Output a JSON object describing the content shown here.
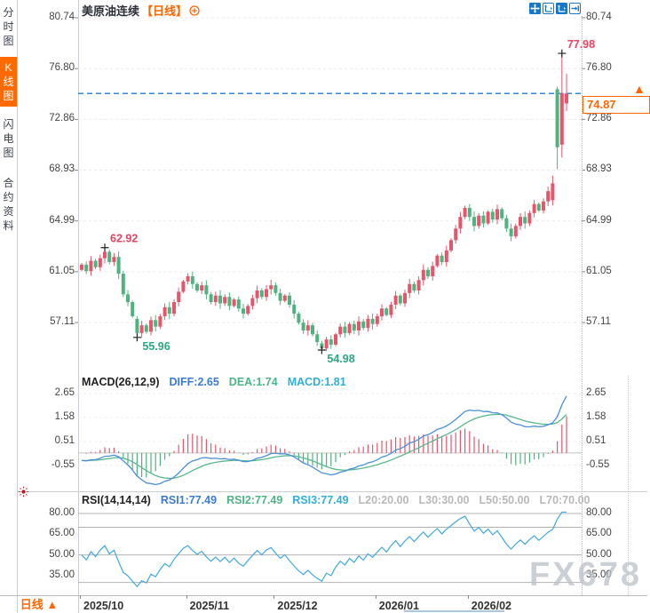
{
  "header": {
    "symbol": "美原油连续",
    "period_tag": "【日线】"
  },
  "sidebar": {
    "items": [
      {
        "label": "分时图",
        "active": false
      },
      {
        "label": "K线图",
        "active": true
      },
      {
        "label": "闪电图",
        "active": false
      },
      {
        "label": "合约资料",
        "active": false
      }
    ]
  },
  "toolbar": {
    "icons": [
      "pan-icon",
      "zoom-x-axis-icon",
      "zoom-y-axis-icon",
      "jump-latest-icon"
    ]
  },
  "bottom_bar": {
    "period_label": "日线",
    "arrow": "▲"
  },
  "watermark": "FX678",
  "price_tag": {
    "value": "74.87",
    "arrow": "▲"
  },
  "colors": {
    "up": "#e8556a",
    "down": "#4eb37e",
    "accent": "#ff6600",
    "icon_blue": "#1878c8",
    "current_line": "#1b7fd8",
    "diff_line": "#4a8fd9",
    "dea_line": "#58b98c",
    "rsi_line": "#3fa9dc",
    "grid": "#e9e9e9",
    "annot_red": "#e8425f",
    "annot_green": "#2aa880"
  },
  "chart_data": {
    "type": "candlestick",
    "title": "美原油连续 日线",
    "price_axis_labels": [
      "80.74",
      "76.80",
      "72.86",
      "68.93",
      "64.99",
      "61.05",
      "57.11"
    ],
    "price_axis_values": [
      80.74,
      76.8,
      72.86,
      68.93,
      64.99,
      61.05,
      57.11
    ],
    "months": [
      {
        "label": "2025/10",
        "index": 0
      },
      {
        "label": "2025/11",
        "index": 23
      },
      {
        "label": "2025/12",
        "index": 42
      },
      {
        "label": "2026/01",
        "index": 64
      },
      {
        "label": "2026/02",
        "index": 84
      }
    ],
    "closes": [
      61.6,
      61.1,
      61.9,
      61.4,
      62.1,
      62.6,
      61.8,
      62.2,
      60.9,
      59.3,
      58.7,
      57.6,
      56.3,
      56.9,
      56.4,
      57.3,
      56.8,
      57.6,
      58.3,
      57.8,
      58.7,
      59.5,
      60.3,
      60.7,
      60.1,
      59.6,
      60.0,
      59.3,
      58.7,
      59.2,
      58.6,
      59.1,
      58.4,
      58.9,
      58.2,
      57.8,
      58.4,
      59.0,
      59.6,
      59.1,
      59.7,
      60.0,
      59.4,
      58.8,
      59.2,
      58.5,
      57.8,
      57.1,
      56.5,
      56.9,
      56.2,
      55.6,
      55.1,
      55.8,
      55.4,
      56.2,
      56.8,
      56.3,
      57.0,
      56.5,
      57.2,
      56.7,
      57.4,
      57.0,
      57.6,
      58.2,
      57.7,
      58.5,
      59.2,
      58.6,
      59.4,
      60.1,
      59.6,
      60.4,
      61.2,
      60.7,
      61.5,
      62.3,
      61.8,
      62.7,
      63.5,
      64.4,
      65.3,
      66.0,
      65.3,
      64.6,
      65.4,
      64.8,
      65.7,
      65.1,
      65.9,
      65.2,
      64.4,
      63.8,
      64.6,
      65.3,
      64.8,
      65.6,
      66.3,
      65.8,
      66.5,
      67.3,
      67.9,
      70.7,
      74.9,
      74.87
    ],
    "ohlc_overrides": {
      "5": [
        62.1,
        62.92,
        61.7,
        62.6
      ],
      "12": [
        57.4,
        57.6,
        55.96,
        56.3
      ],
      "52": [
        55.5,
        55.7,
        54.98,
        55.1
      ],
      "102": [
        66.6,
        68.5,
        66.2,
        67.9
      ],
      "103": [
        75.2,
        75.4,
        69.0,
        70.7
      ],
      "104": [
        70.9,
        77.98,
        69.9,
        74.9
      ],
      "105": [
        74.1,
        76.4,
        73.5,
        74.87
      ]
    },
    "annotations": [
      {
        "text": "62.92",
        "index": 5,
        "price": 62.92,
        "side": "above",
        "color": "#e8425f"
      },
      {
        "text": "55.96",
        "index": 12,
        "price": 55.96,
        "side": "below",
        "color": "#2aa880"
      },
      {
        "text": "54.98",
        "index": 52,
        "price": 54.98,
        "side": "below",
        "color": "#2aa880"
      },
      {
        "text": "77.98",
        "index": 104,
        "price": 77.98,
        "side": "above",
        "color": "#e8425f"
      }
    ],
    "current_price": 74.87,
    "macd": {
      "name": "MACD(26,12,9)",
      "items": [
        {
          "label": "DIFF:2.65",
          "color": "#3a7bd5"
        },
        {
          "label": "DEA:1.74",
          "color": "#4cb586"
        },
        {
          "label": "MACD:1.81",
          "color": "#2fb0d9"
        }
      ],
      "params": {
        "slow": 26,
        "fast": 12,
        "signal": 9
      },
      "axis_labels": [
        "2.65",
        "1.58",
        "0.51",
        "-0.55"
      ],
      "axis_values": [
        2.65,
        1.58,
        0.51,
        -0.55
      ]
    },
    "rsi": {
      "name": "RSI(14,14,14)",
      "items": [
        {
          "label": "RSI1:77.49",
          "color": "#3a7bd5"
        },
        {
          "label": "RSI2:77.49",
          "color": "#4cb586"
        },
        {
          "label": "RSI3:77.49",
          "color": "#2fb0d9"
        },
        {
          "label": "L20:20.00",
          "color": "#b8b8b8"
        },
        {
          "label": "L30:30.00",
          "color": "#b8b8b8"
        },
        {
          "label": "L50:50.00",
          "color": "#b8b8b8"
        },
        {
          "label": "L70:70.00",
          "color": "#b8b8b8"
        }
      ],
      "period": 14,
      "axis_labels": [
        "80.00",
        "65.00",
        "50.00",
        "35.00"
      ],
      "axis_values": [
        80,
        65,
        50,
        35
      ],
      "level_lines": [
        80,
        70,
        50,
        30
      ]
    }
  }
}
